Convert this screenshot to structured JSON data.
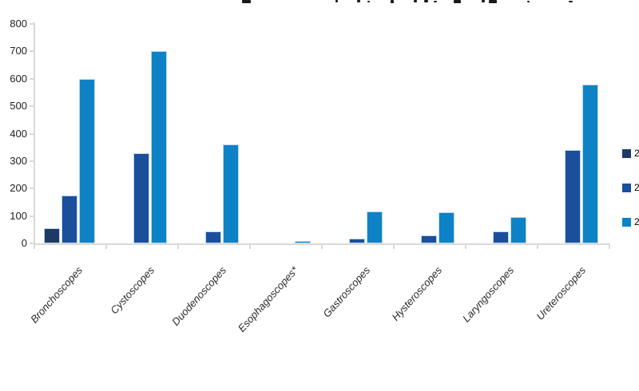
{
  "chart_data": {
    "type": "bar",
    "categories": [
      "Bronchoscopes",
      "Cystoscopes",
      "Duodenoscopes",
      "Esophagoscopes*",
      "Gastroscopes",
      "Hysteroscopes",
      "Laryngoscopes",
      "Ureteroscopes"
    ],
    "series": [
      {
        "name": "2",
        "color": "#1F3864",
        "values": [
          55,
          0,
          0,
          0,
          0,
          0,
          0,
          0
        ]
      },
      {
        "name": "2",
        "color": "#1B4E9B",
        "values": [
          175,
          330,
          45,
          0,
          18,
          28,
          45,
          340
        ]
      },
      {
        "name": "2",
        "color": "#0E82C6",
        "values": [
          600,
          700,
          360,
          8,
          115,
          112,
          95,
          580
        ]
      }
    ],
    "ylim": [
      0,
      800
    ],
    "yticks": [
      "0",
      "100",
      "200",
      "300",
      "400",
      "500",
      "600",
      "700",
      "800"
    ],
    "xlabel": "",
    "ylabel": "",
    "grid": false,
    "legend_position": "right",
    "bar_border_color": "#BDD7EE",
    "axis_color": "#D9D9D9"
  }
}
